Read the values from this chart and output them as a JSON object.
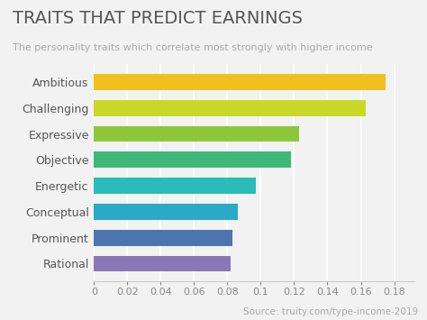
{
  "title": "TRAITS THAT PREDICT EARNINGS",
  "subtitle": "The personality traits which correlate most strongly with higher income",
  "source": "Source: truity.com/type-income-2019",
  "categories": [
    "Rational",
    "Prominent",
    "Conceptual",
    "Energetic",
    "Objective",
    "Expressive",
    "Challenging",
    "Ambitious"
  ],
  "values": [
    0.082,
    0.083,
    0.086,
    0.097,
    0.118,
    0.123,
    0.163,
    0.175
  ],
  "bar_colors": [
    "#8878b8",
    "#4a75b0",
    "#2aaac8",
    "#2bbbb8",
    "#3db87a",
    "#8dc83a",
    "#cad828",
    "#f0c020"
  ],
  "background_color": "#f2f2f2",
  "xlim": [
    0,
    0.192
  ],
  "xticks": [
    0,
    0.02,
    0.04,
    0.06,
    0.08,
    0.1,
    0.12,
    0.14,
    0.16,
    0.18
  ],
  "title_fontsize": 14,
  "subtitle_fontsize": 8,
  "label_fontsize": 9,
  "tick_fontsize": 8,
  "source_fontsize": 7.5
}
